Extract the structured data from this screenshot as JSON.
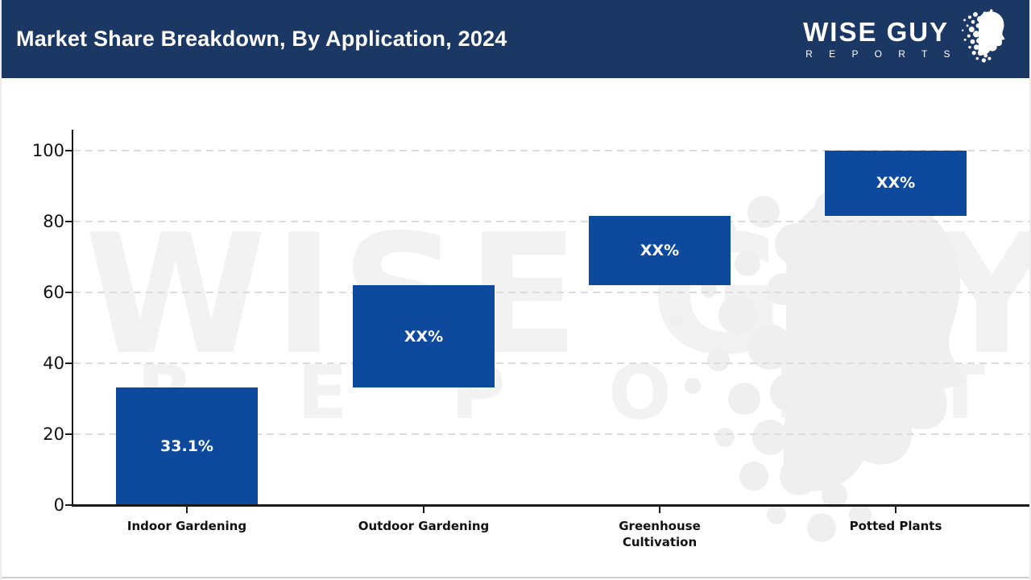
{
  "header": {
    "title": "Market Share Breakdown, By Application, 2024"
  },
  "brand": {
    "line1": "WISE GUY",
    "line2": "R E P O R T S"
  },
  "watermark": {
    "line1": "WISE GUY",
    "line2": "R E P O R T S"
  },
  "colors": {
    "header_bg": "#1b3764",
    "bar": "#0d4a9e",
    "grid": "#dcdcdc",
    "axis": "#1a1a1a",
    "tick_text": "#111111",
    "bar_label_text": "#ffffff",
    "watermark": "#f2f2f2",
    "watermark_face": "#efefef"
  },
  "chart_data": {
    "type": "bar",
    "subtype": "waterfall",
    "title": "Market Share Breakdown, By Application, 2024",
    "categories": [
      "Indoor Gardening",
      "Outdoor Gardening",
      "Greenhouse\nCultivation",
      "Potted Plants"
    ],
    "segments": [
      {
        "category": "Indoor Gardening",
        "start": 0,
        "end": 33.1,
        "label": "33.1%"
      },
      {
        "category": "Outdoor Gardening",
        "start": 33.1,
        "end": 62,
        "label": "XX%"
      },
      {
        "category": "Greenhouse Cultivation",
        "start": 62,
        "end": 81.7,
        "label": "XX%"
      },
      {
        "category": "Potted Plants",
        "start": 81.7,
        "end": 100,
        "label": "XX%"
      }
    ],
    "xlabel": "",
    "ylabel": "",
    "ylim": [
      0,
      100
    ],
    "yticks": [
      0,
      20,
      40,
      60,
      80,
      100
    ],
    "grid": "horizontal-dashed",
    "legend": "none",
    "bar_color": "#0d4a9e"
  }
}
